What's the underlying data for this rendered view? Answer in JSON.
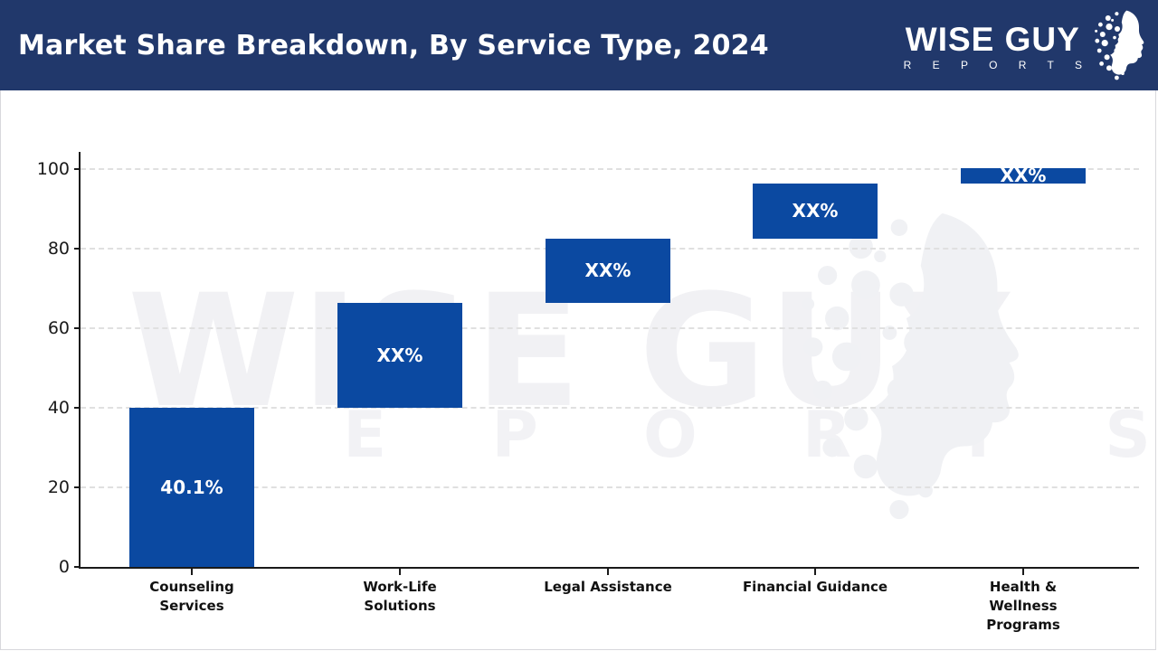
{
  "header": {
    "title": "Market Share Breakdown, By Service Type, 2024",
    "logo": {
      "brand_line1": "WISE GUY",
      "brand_line2": "R E P O R T S"
    }
  },
  "watermark": {
    "line1": "WISE GUY",
    "line2": "R E P O R T S"
  },
  "chart_data": {
    "type": "bar",
    "variant": "waterfall",
    "title": "Market Share Breakdown, By Service Type, 2024",
    "categories": [
      "Counseling Services",
      "Work-Life Solutions",
      "Legal Assistance",
      "Financial Guidance",
      "Health & Wellness Programs"
    ],
    "category_lines": [
      [
        "Counseling",
        "Services"
      ],
      [
        "Work-Life",
        "Solutions"
      ],
      [
        "Legal Assistance"
      ],
      [
        "Financial Guidance"
      ],
      [
        "Health & Wellness",
        "Programs"
      ]
    ],
    "segments": [
      {
        "category": "Counseling Services",
        "start": 0,
        "end": 40.1,
        "value_label": "40.1%"
      },
      {
        "category": "Work-Life Solutions",
        "start": 40.1,
        "end": 66.4,
        "value_label": "XX%"
      },
      {
        "category": "Legal Assistance",
        "start": 66.4,
        "end": 82.5,
        "value_label": "XX%"
      },
      {
        "category": "Financial Guidance",
        "start": 82.5,
        "end": 96.4,
        "value_label": "XX%"
      },
      {
        "category": "Health & Wellness Programs",
        "start": 96.4,
        "end": 100.2,
        "value_label": "XX%"
      }
    ],
    "ylabel": "",
    "xlabel": "",
    "yticks": [
      0,
      20,
      40,
      60,
      80,
      100
    ],
    "ylim": [
      0,
      104
    ],
    "grid": {
      "axis": "y",
      "style": "dashed"
    },
    "legend": "none",
    "bar_color": "#0b49a1",
    "value_label_color": "#ffffff"
  },
  "colors": {
    "header_bg": "#21386b",
    "bar_blue": "#0b49a1",
    "gridline": "#e0e0e0",
    "axis": "#1a1a1a",
    "watermark": "#f1f1f4",
    "frame_border": "#d8d8dc"
  }
}
